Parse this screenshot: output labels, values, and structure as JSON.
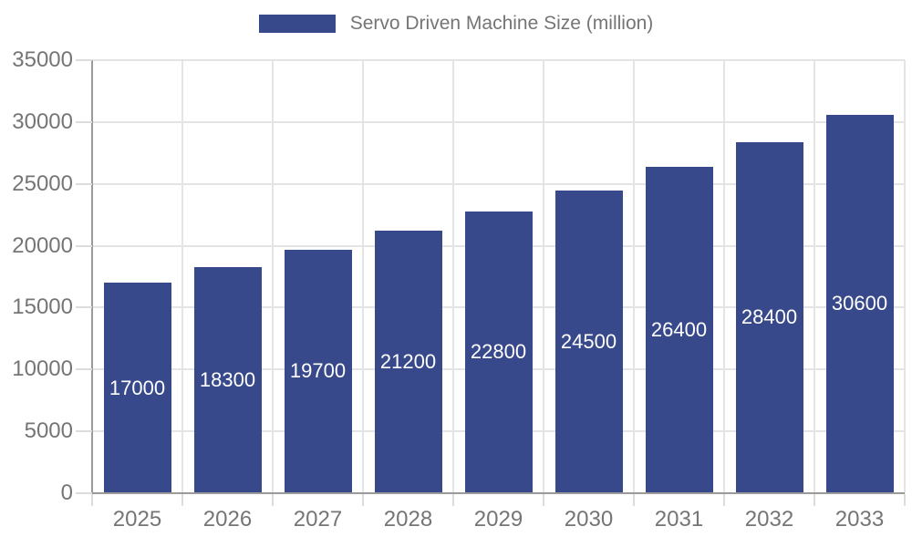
{
  "chart_data": {
    "type": "bar",
    "title": "Servo Driven Machine Size (million)",
    "categories": [
      "2025",
      "2026",
      "2027",
      "2028",
      "2029",
      "2030",
      "2031",
      "2032",
      "2033"
    ],
    "series": [
      {
        "name": "Servo Driven Machine Size (million)",
        "values": [
          17000,
          18300,
          19700,
          21200,
          22800,
          24500,
          26400,
          28400,
          30600
        ]
      }
    ],
    "xlabel": "",
    "ylabel": "",
    "ylim": [
      0,
      35000
    ],
    "yticks": [
      0,
      5000,
      10000,
      15000,
      20000,
      25000,
      30000,
      35000
    ],
    "grid": true,
    "legend_position": "top-center",
    "colors": {
      "bar": "#38498B",
      "bar_value_label": "#ffffff",
      "axis_text": "#757575",
      "legend_text": "#757575",
      "gridline": "#e4e4e4",
      "tick": "#dcdcdc",
      "axis_line": "#9a9a9a"
    }
  }
}
